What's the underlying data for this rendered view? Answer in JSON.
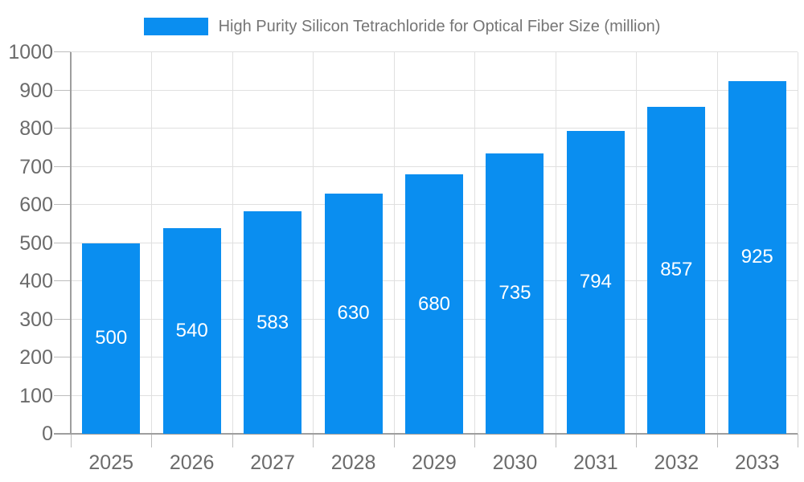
{
  "chart_data": {
    "type": "bar",
    "title": "High Purity Silicon Tetrachloride for Optical Fiber Size (million)",
    "categories": [
      "2025",
      "2026",
      "2027",
      "2028",
      "2029",
      "2030",
      "2031",
      "2032",
      "2033"
    ],
    "values": [
      500,
      540,
      583,
      630,
      680,
      735,
      794,
      857,
      925
    ],
    "bar_labels": [
      "500",
      "540",
      "583",
      "630",
      "680",
      "735",
      "794",
      "857",
      "925"
    ],
    "xlabel": "",
    "ylabel": "",
    "ylim": [
      0,
      1000
    ],
    "ytick_step": 100,
    "ytick_labels": [
      "0",
      "100",
      "200",
      "300",
      "400",
      "500",
      "600",
      "700",
      "800",
      "900",
      "1000"
    ],
    "grid": true,
    "legend_position": "top",
    "colors": {
      "bar": "#0a8ef0",
      "bar_label": "#ffffff",
      "grid": "#e0e0e0",
      "axis": "#9e9e9e",
      "tick": "#bdbdbd",
      "tick_label": "#6b6b6b",
      "title": "#757575",
      "background": "#ffffff"
    }
  }
}
